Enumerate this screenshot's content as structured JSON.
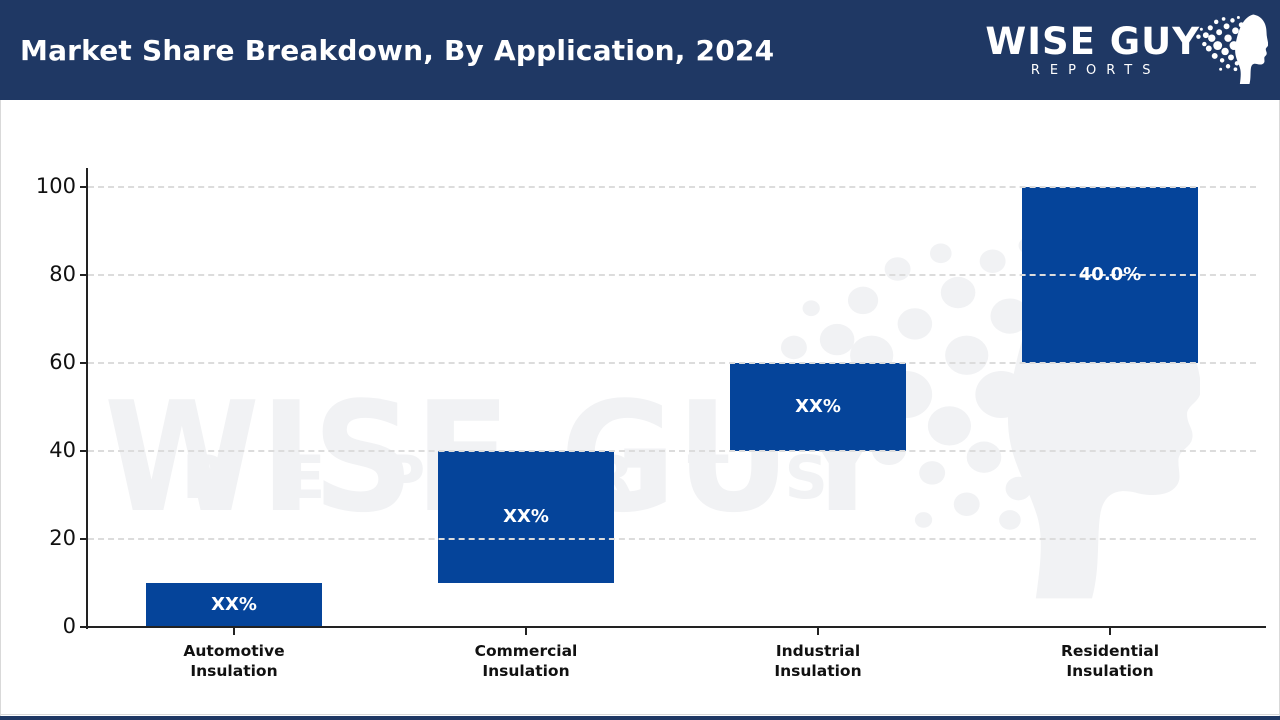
{
  "header": {
    "title": "Market Share Breakdown, By Application, 2024",
    "logo": {
      "brand": "WISE GUY",
      "sub": "REPORTS"
    }
  },
  "watermark": {
    "line1": "WISE GUY",
    "line2": "REPORTS"
  },
  "chart_data": {
    "type": "bar",
    "subtype": "waterfall",
    "title": "Market Share Breakdown, By Application, 2024",
    "xlabel": "",
    "ylabel": "",
    "ylim": [
      0,
      105
    ],
    "yticks": [
      0,
      20,
      40,
      60,
      80,
      100
    ],
    "grid": "dashed-horizontal",
    "legend": "none",
    "bar_color": "#05449a",
    "value_label_color": "#ffffff",
    "categories": [
      [
        "Automotive",
        "Insulation"
      ],
      [
        "Commercial",
        "Insulation"
      ],
      [
        "Industrial",
        "Insulation"
      ],
      [
        "Residential",
        "Insulation"
      ]
    ],
    "segments": [
      {
        "category": "Automotive Insulation",
        "start": 0,
        "end": 10,
        "label": "XX%"
      },
      {
        "category": "Commercial Insulation",
        "start": 10,
        "end": 40,
        "label": "XX%"
      },
      {
        "category": "Industrial Insulation",
        "start": 40,
        "end": 60,
        "label": "XX%"
      },
      {
        "category": "Residential Insulation",
        "start": 60,
        "end": 100,
        "label": "40.0%"
      }
    ]
  }
}
